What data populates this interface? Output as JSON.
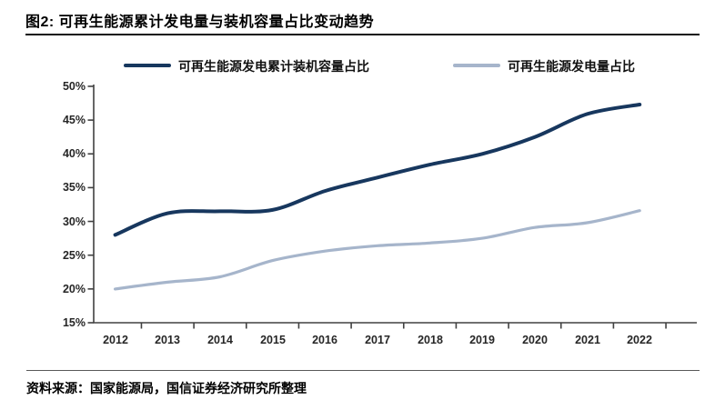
{
  "page": {
    "title": "图2: 可再生能源累计发电量与装机容量占比变动趋势",
    "source": "资料来源：国家能源局，国信证券经济研究所整理"
  },
  "colors": {
    "capacity_line": "#17375e",
    "generation_line": "#a6b5cb",
    "axis": "#404040",
    "title_rule": "#111111"
  },
  "chart_data": {
    "type": "line",
    "line_style": "smooth",
    "title": "图2: 可再生能源累计发电量与装机容量占比变动趋势",
    "categories": [
      "2012",
      "2013",
      "2014",
      "2015",
      "2016",
      "2017",
      "2018",
      "2019",
      "2020",
      "2021",
      "2022"
    ],
    "series": [
      {
        "name": "可再生能源发电累计装机容量占比",
        "color": "#17375e",
        "values": [
          28.0,
          31.2,
          31.5,
          31.7,
          34.5,
          36.5,
          38.4,
          40.0,
          42.5,
          45.9,
          47.3
        ]
      },
      {
        "name": "可再生能源发电量占比",
        "color": "#a6b5cb",
        "values": [
          20.0,
          21.0,
          21.8,
          24.2,
          25.6,
          26.4,
          26.8,
          27.5,
          29.1,
          29.8,
          31.6
        ]
      }
    ],
    "ylim": [
      15,
      50
    ],
    "y_tick_step": 5,
    "y_unit": "%",
    "y_tick_labels": [
      "50%",
      "45%",
      "40%",
      "35%",
      "30%",
      "25%",
      "20%",
      "15%"
    ],
    "grid": false,
    "legend_position": "top"
  }
}
